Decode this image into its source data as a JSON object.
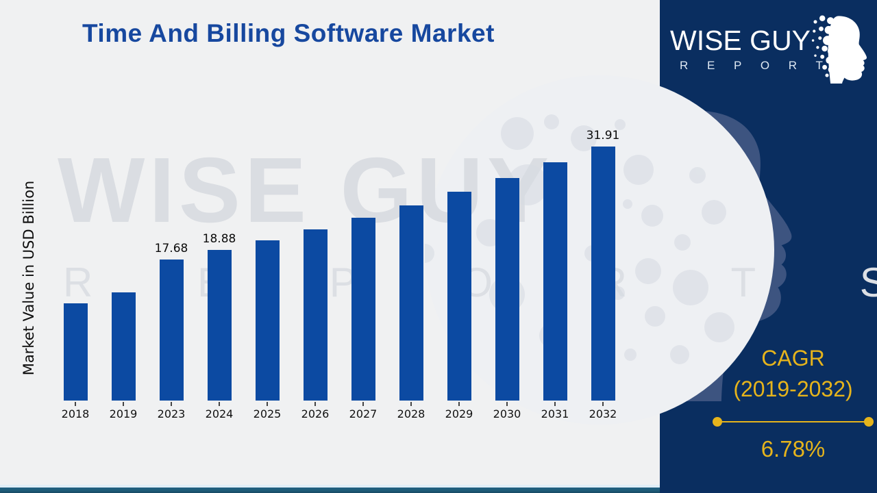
{
  "title": "Time And Billing Software Market",
  "logo": {
    "line1": "WISE GUY",
    "line2": "R E P O R T S"
  },
  "watermark": {
    "line1": "WISE GUY",
    "line2": "R E P O R T S"
  },
  "sidebar": {
    "cagr_label": "CAGR",
    "cagr_period": "(2019-2032)",
    "cagr_value": "6.78%",
    "bg_color": "#0a2e60",
    "accent_color": "#e6b41c"
  },
  "colors": {
    "bar": "#0c4aa2",
    "title": "#17489f",
    "bottom_strip": "#1e5c79",
    "background": "#f0f1f2"
  },
  "chart_data": {
    "type": "bar",
    "title": "Time And Billing Software Market",
    "xlabel": "",
    "ylabel": "Market Value in USD Billion",
    "categories": [
      "2018",
      "2019",
      "2023",
      "2024",
      "2025",
      "2026",
      "2027",
      "2028",
      "2029",
      "2030",
      "2031",
      "2032"
    ],
    "values": [
      12.2,
      13.6,
      17.68,
      18.88,
      20.16,
      21.53,
      22.99,
      24.55,
      26.21,
      27.99,
      29.89,
      31.91
    ],
    "data_labels": {
      "2023": "17.68",
      "2024": "18.88",
      "2032": "31.91"
    },
    "bar_color": "#0c4aa2",
    "ylim": [
      0,
      34
    ],
    "grid": false,
    "legend": null
  }
}
